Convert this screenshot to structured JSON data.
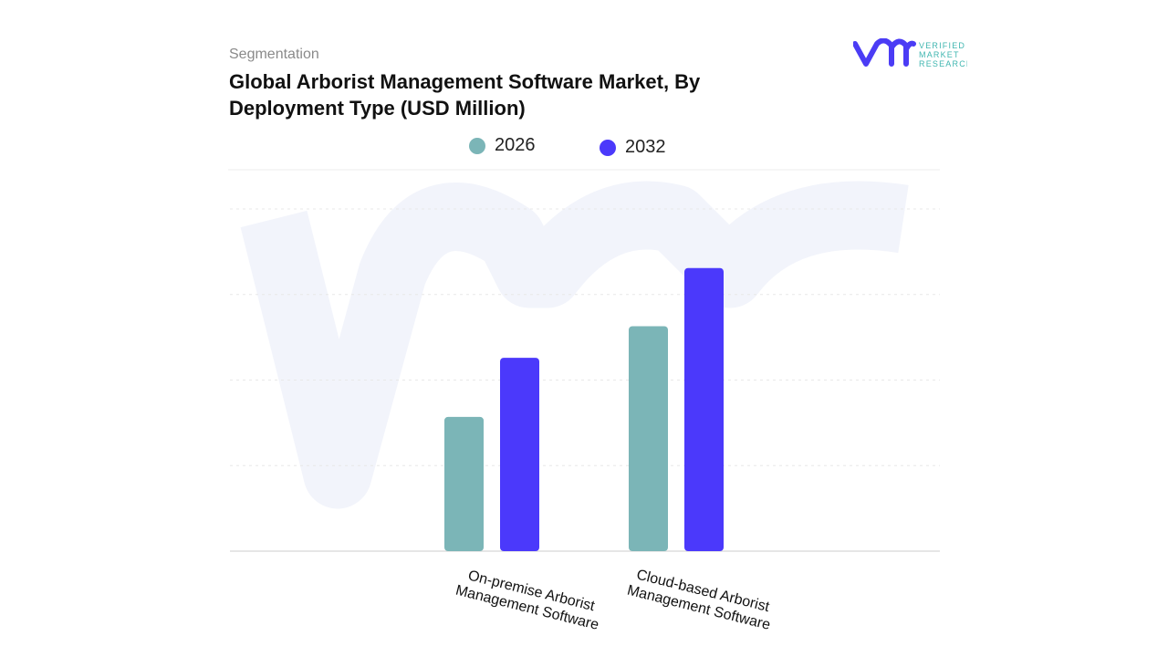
{
  "header": {
    "segment_label": "Segmentation",
    "title": "Global Arborist Management Software Market, By Deployment Type (USD Million)"
  },
  "logo": {
    "text": [
      "VERIFIED",
      "MARKET",
      "RESEARCH"
    ],
    "brand_color": "#4b3cf5",
    "text_color": "#3fb6b0"
  },
  "chart_data": {
    "type": "bar",
    "title": "Global Arborist Management Software Market, By Deployment Type (USD Million)",
    "categories": [
      "On-premise Arborist Management Software",
      "Cloud-based Arborist Management Software"
    ],
    "series": [
      {
        "name": "2026",
        "color": "#7bb5b7",
        "values": [
          1.57,
          2.63
        ]
      },
      {
        "name": "2032",
        "color": "#4b39fb",
        "values": [
          2.26,
          3.31
        ]
      }
    ],
    "ylim": [
      0,
      4
    ],
    "y_ticks_labeled": false,
    "grid": true,
    "legend_placement": "top-center",
    "xlabel": "",
    "ylabel": ""
  }
}
